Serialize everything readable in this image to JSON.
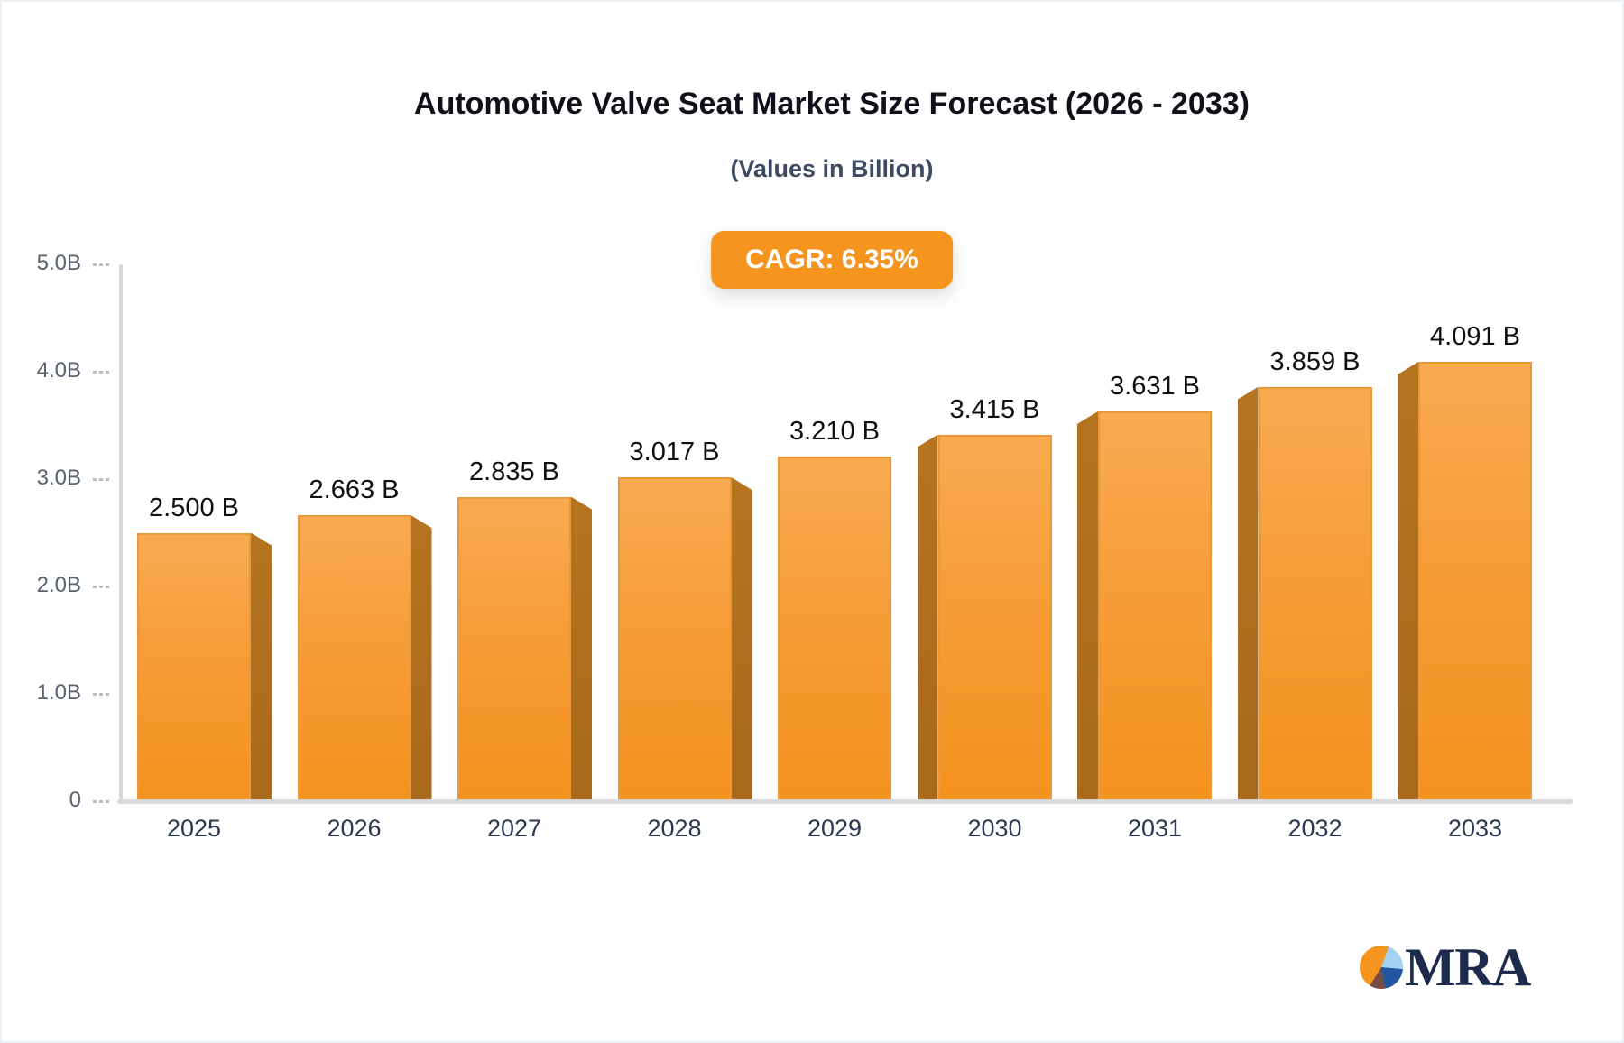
{
  "header": {
    "title": "Automotive Valve Seat Market Size Forecast (2026 - 2033)",
    "subtitle": "(Values in Billion)",
    "cagr_label": "CAGR: 6.35%"
  },
  "chart_data": {
    "type": "bar",
    "title": "Automotive Valve Seat Market Size Forecast (2026 - 2033)",
    "subtitle": "(Values in Billion)",
    "cagr_percent": 6.35,
    "categories": [
      "2025",
      "2026",
      "2027",
      "2028",
      "2029",
      "2030",
      "2031",
      "2032",
      "2033"
    ],
    "values": [
      2.5,
      2.663,
      2.835,
      3.017,
      3.21,
      3.415,
      3.631,
      3.859,
      4.091
    ],
    "value_labels": [
      "2.500 B",
      "2.663 B",
      "2.835 B",
      "3.017 B",
      "3.210 B",
      "3.415 B",
      "3.631 B",
      "3.859 B",
      "4.091 B"
    ],
    "xlabel": "",
    "ylabel": "",
    "ylim": [
      0,
      5
    ],
    "ytick_labels": [
      "5.0B",
      "4.0B",
      "3.0B",
      "2.0B",
      "1.0B",
      "0"
    ],
    "ytick_values": [
      5,
      4,
      3,
      2,
      1,
      0
    ],
    "grid": false,
    "legend": "none",
    "bar_style": {
      "face_top_color": "#F9AB52",
      "face_bottom_color": "#F4921E",
      "side_color": "#AE6E1E",
      "border_color": "#EC9838",
      "effect": "3d-perspective-toward-center"
    }
  },
  "footer": {
    "logo_text": "MRA",
    "logo_pie_colors": [
      "#f5941f",
      "#a5d2f0",
      "#2257a0",
      "#7b4c44"
    ]
  }
}
